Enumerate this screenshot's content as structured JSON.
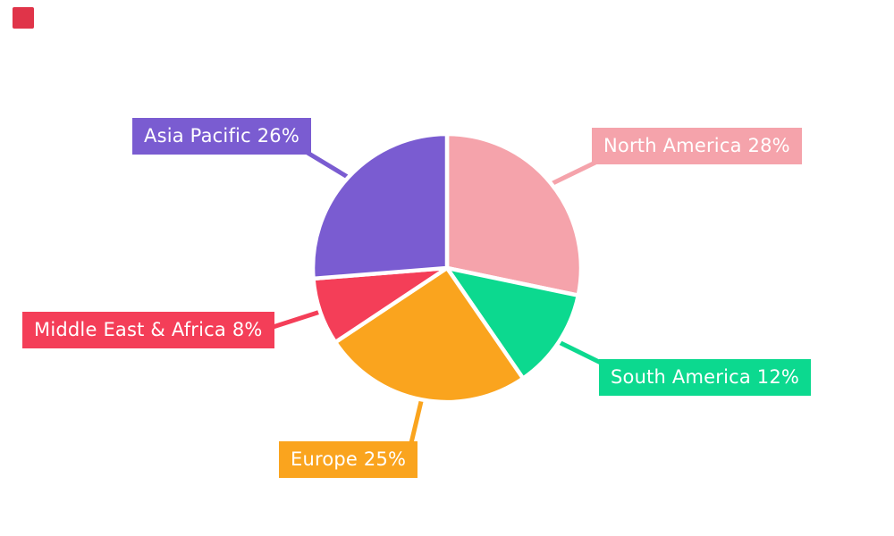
{
  "page": {
    "background_color": "#FFFFFF"
  },
  "decorations": {
    "corner_marker_color": "#E03449"
  },
  "chart_data": {
    "type": "pie",
    "title": "",
    "categories": [
      "North America",
      "South America",
      "Europe",
      "Middle East & Africa",
      "Asia Pacific"
    ],
    "values": [
      28,
      12,
      25,
      8,
      26
    ],
    "unit": "%",
    "colors": [
      "#F5A3AB",
      "#0CD98F",
      "#FAA41E",
      "#F43E58",
      "#7A5CD1"
    ],
    "labels": [
      "North America 28%",
      "South America 12%",
      "Europe 25%",
      "Middle East & Africa 8%",
      "Asia Pacific 26%"
    ],
    "label_text_color": "#FFFFFF",
    "slice_border_color": "#FFFFFF",
    "start_angle_deg": 0,
    "direction": "clockwise",
    "legend_position": "callout-labels"
  }
}
